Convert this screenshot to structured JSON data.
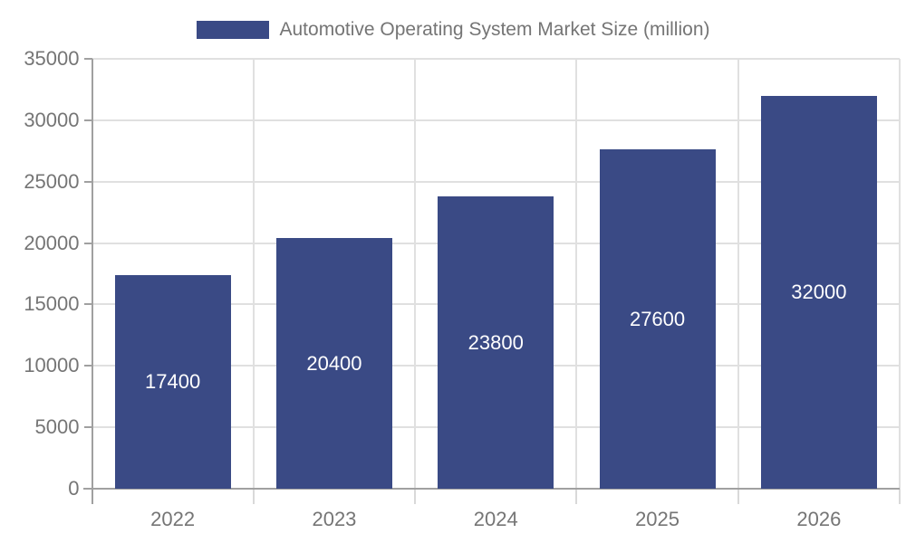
{
  "legend": {
    "label": "Automotive Operating System Market Size (million)"
  },
  "chart_data": {
    "type": "bar",
    "title": "Automotive Operating System Market Size (million)",
    "series_name": "Automotive Operating System Market Size (million)",
    "categories": [
      "2022",
      "2023",
      "2024",
      "2025",
      "2026"
    ],
    "values": [
      17400,
      20400,
      23800,
      27600,
      32000
    ],
    "xlabel": "",
    "ylabel": "",
    "ylim": [
      0,
      35000
    ],
    "ytick_step": 5000,
    "ytick_labels": [
      "0",
      "5000",
      "10000",
      "15000",
      "20000",
      "25000",
      "30000",
      "35000"
    ],
    "grid": true,
    "legend_position": "top-center",
    "value_labels_position": "inside-center"
  },
  "colors": {
    "bar": "#3A4A85",
    "axis_line": "#A0A0A0",
    "grid_line": "#E0E0E0",
    "boundary_tick": "#D9D9D9",
    "axis_label": "#757575",
    "value_label": "#FFFFFF",
    "background": "#FFFFFF"
  }
}
